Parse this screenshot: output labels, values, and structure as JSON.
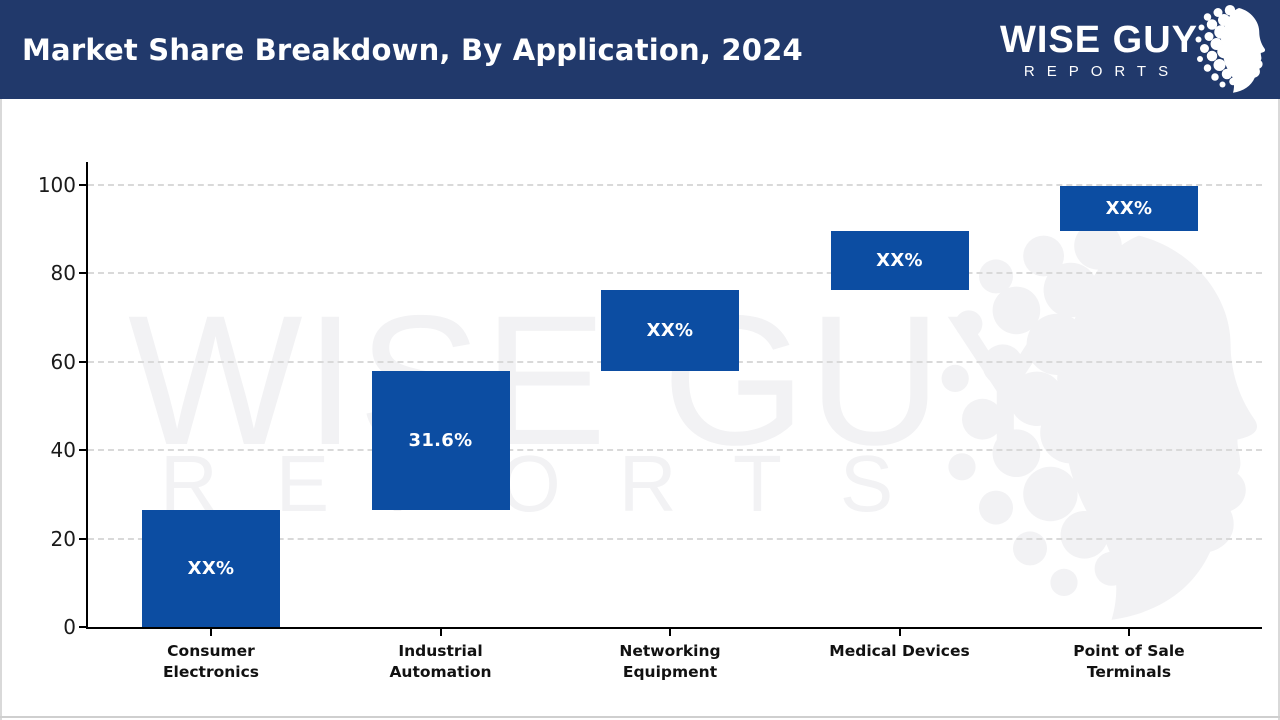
{
  "header": {
    "title": "Market Share Breakdown, By Application, 2024",
    "logo": {
      "brand": "WISE GUY",
      "sub": "REPORTS"
    }
  },
  "watermark": {
    "brand": "WISE GUY",
    "sub": "REPORTS"
  },
  "chart_data": {
    "type": "bar",
    "variant": "floating-waterfall",
    "title": "Market Share Breakdown, By Application, 2024",
    "categories": [
      "Consumer Electronics",
      "Industrial Automation",
      "Networking Equipment",
      "Medical Devices",
      "Point of Sale Terminals"
    ],
    "bars": [
      {
        "category": "Consumer Electronics",
        "tick_lines": [
          "Consumer",
          "Electronics"
        ],
        "start": 0,
        "end": 26.4,
        "label": "XX%"
      },
      {
        "category": "Industrial Automation",
        "tick_lines": [
          "Industrial",
          "Automation"
        ],
        "start": 26.4,
        "end": 58.0,
        "label": "31.6%"
      },
      {
        "category": "Networking Equipment",
        "tick_lines": [
          "Networking",
          "Equipment"
        ],
        "start": 58.0,
        "end": 76.3,
        "label": "XX%"
      },
      {
        "category": "Medical Devices",
        "tick_lines": [
          "Medical Devices"
        ],
        "start": 76.3,
        "end": 89.6,
        "label": "XX%"
      },
      {
        "category": "Point of Sale Terminals",
        "tick_lines": [
          "Point of Sale",
          "Terminals"
        ],
        "start": 89.6,
        "end": 99.8,
        "label": "XX%"
      }
    ],
    "yticks": [
      0,
      20,
      40,
      60,
      80,
      100
    ],
    "ylim": [
      0,
      105
    ],
    "xlabel": "",
    "ylabel": "",
    "grid": "horizontal-dashed",
    "legend": false,
    "colors": {
      "bar": "#0c4da2",
      "grid": "#d9d9d9",
      "axis": "#000000",
      "bar_label_text": "#ffffff",
      "tick_text": "#1a1a1a",
      "header_bg": "#21396b",
      "watermark": "#f2f2f4"
    }
  }
}
